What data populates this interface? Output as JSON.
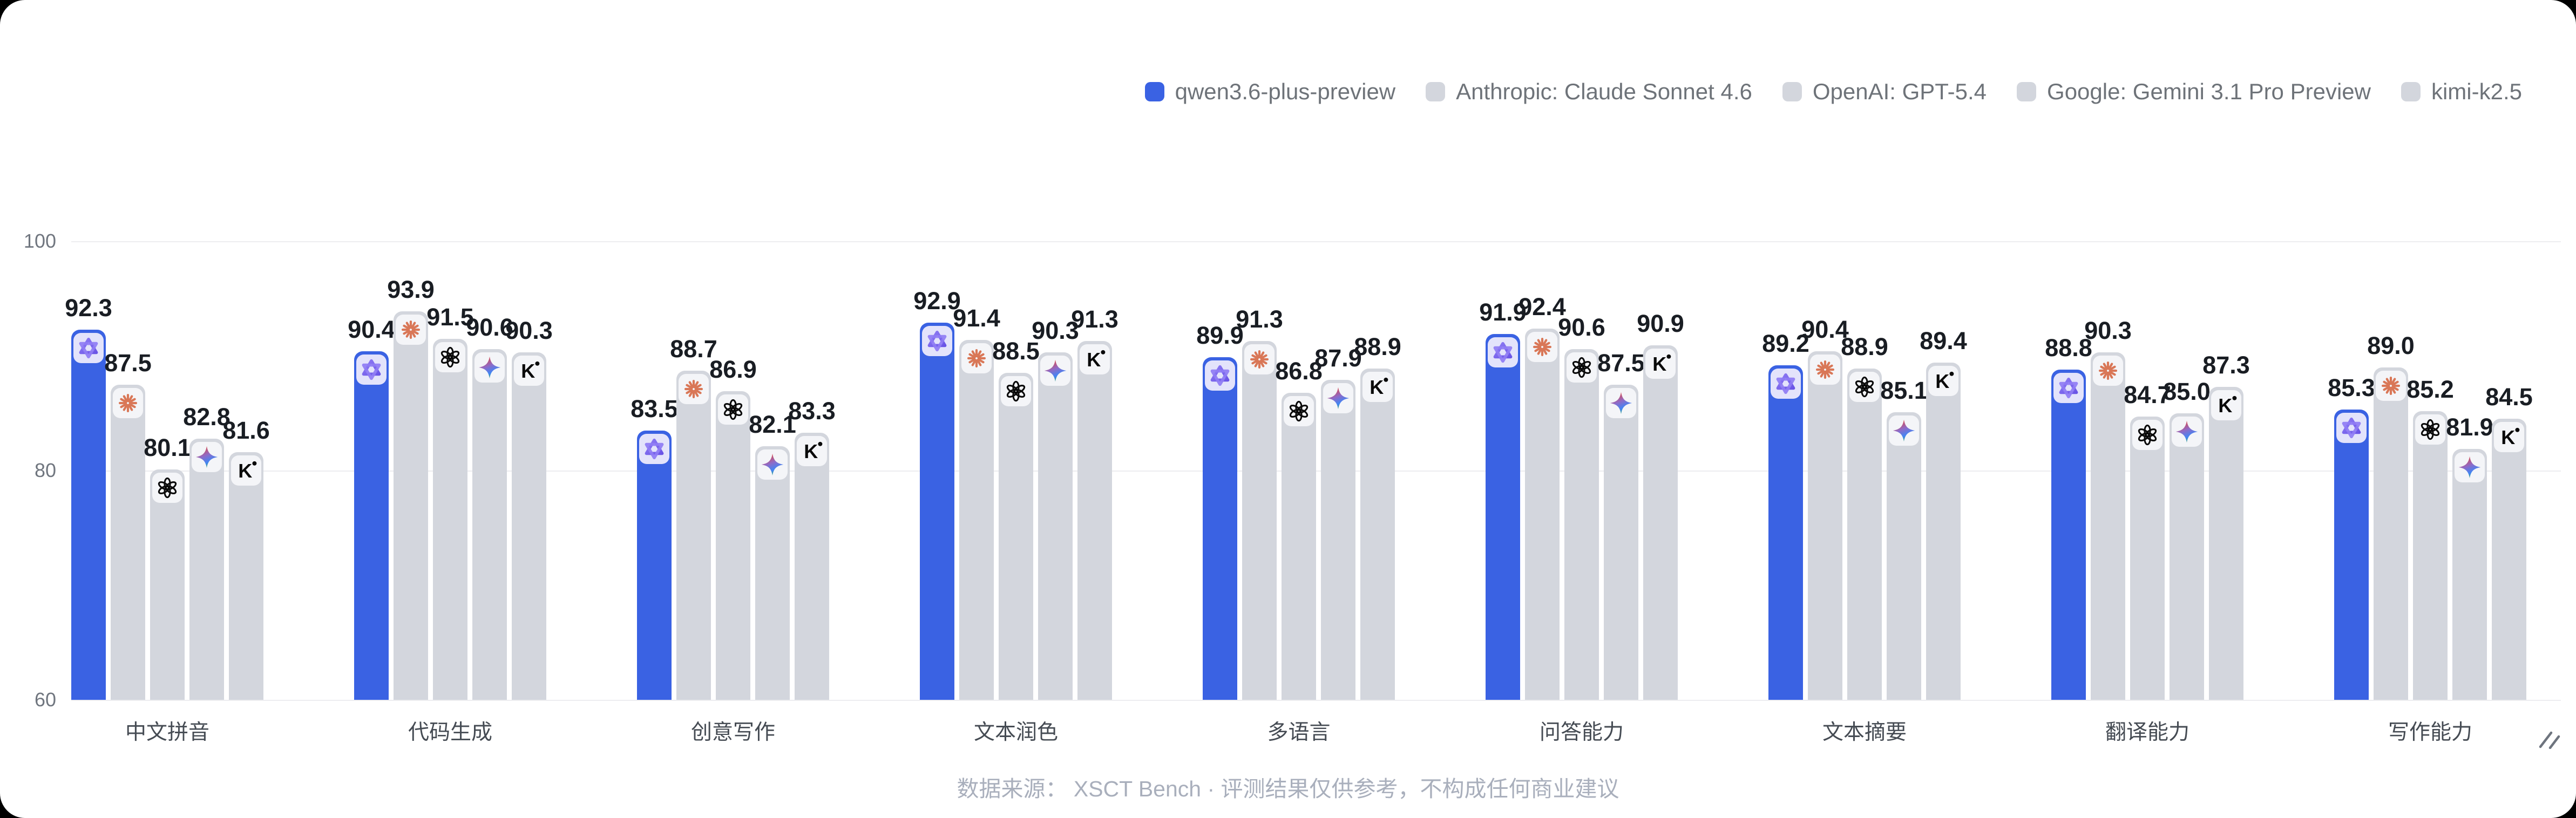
{
  "page": {
    "background": "#000000",
    "card_background": "#ffffff"
  },
  "chart_data": {
    "type": "bar",
    "title": "",
    "xlabel": "",
    "ylabel": "",
    "categories": [
      "中文拼音",
      "代码生成",
      "创意写作",
      "文本润色",
      "多语言",
      "问答能力",
      "文本摘要",
      "翻译能力",
      "写作能力"
    ],
    "series": [
      {
        "name": "qwen3.6-plus-preview",
        "icon": "qwen-icon",
        "color": "#3a62e3",
        "values": [
          92.3,
          90.4,
          83.5,
          92.9,
          89.9,
          91.9,
          89.2,
          88.8,
          85.3
        ]
      },
      {
        "name": "Anthropic: Claude Sonnet 4.6",
        "icon": "claude-icon",
        "color": "#d3d6dd",
        "values": [
          87.5,
          93.9,
          88.7,
          91.4,
          91.3,
          92.4,
          90.4,
          90.3,
          89.0
        ]
      },
      {
        "name": "OpenAI: GPT-5.4",
        "icon": "openai-icon",
        "color": "#d3d6dd",
        "values": [
          80.1,
          91.5,
          86.9,
          88.5,
          86.8,
          90.6,
          88.9,
          84.7,
          85.2
        ]
      },
      {
        "name": "Google: Gemini 3.1 Pro Preview",
        "icon": "gemini-icon",
        "color": "#d3d6dd",
        "values": [
          82.8,
          90.6,
          82.1,
          90.3,
          87.9,
          87.5,
          85.1,
          85.0,
          81.9
        ]
      },
      {
        "name": "kimi-k2.5",
        "icon": "kimi-icon",
        "color": "#d3d6dd",
        "values": [
          81.6,
          90.3,
          83.3,
          91.3,
          88.9,
          90.9,
          89.4,
          87.3,
          84.5
        ]
      }
    ],
    "y_ticks": [
      100,
      80,
      60
    ],
    "ylim": [
      60,
      100
    ],
    "grid": true,
    "legend_position": "top-right",
    "value_format": "one-decimal"
  },
  "colors": {
    "accent_blue": "#3a62e3",
    "bar_gray": "#d3d6dd",
    "qwen_badge_bg": "#e3e3fb",
    "badge_bg": "#f4f5f8",
    "claude_orange": "#d97757",
    "gridline": "#ededf0",
    "value_label": "#191d23",
    "tick_label": "#70767f",
    "category_label": "#454b53",
    "legend_label": "#6e7379",
    "footer_text": "#a9afbc"
  },
  "footer": {
    "text": "数据来源： XSCT Bench · 评测结果仅供参考，不构成任何商业建议"
  }
}
